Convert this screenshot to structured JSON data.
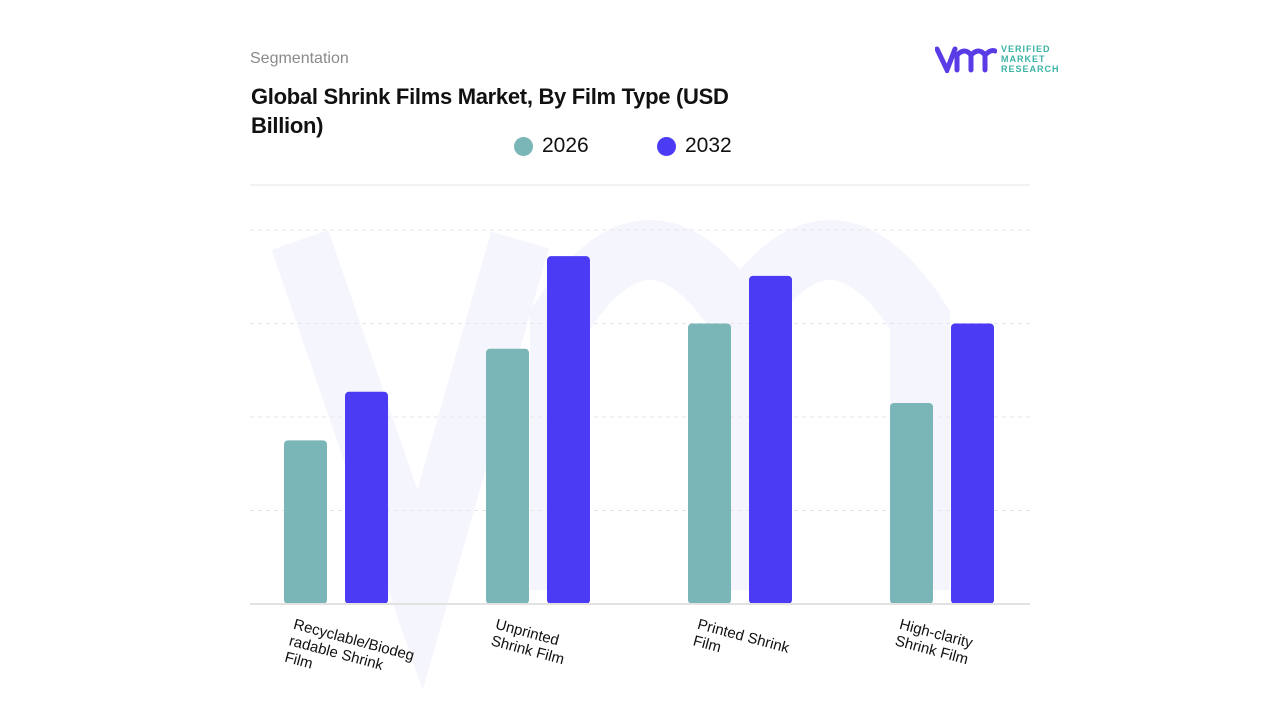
{
  "header": {
    "segment_label": "Segmentation",
    "title": "Global Shrink Films Market, By Film Type (USD Billion)"
  },
  "logo": {
    "text_lines": [
      "VERIFIED",
      "MARKET",
      "RESEARCH"
    ]
  },
  "chart_data": {
    "type": "bar",
    "title": "Global Shrink Films Market, By Film Type (USD Billion)",
    "categories": [
      "Recyclable/Biodegradable Shrink Film",
      "Unprinted Shrink Film",
      "Printed Shrink Film",
      "High-clarity Shrink Film"
    ],
    "category_labels": [
      "Recyclable/Biodeg\nradable Shrink\nFilm",
      "Unprinted\nShrink Film",
      "Printed Shrink\nFilm",
      "High-clarity\nShrink Film"
    ],
    "series": [
      {
        "name": "2026",
        "color": "#7ab5b8",
        "values": [
          1.75,
          2.73,
          3.0,
          2.15
        ]
      },
      {
        "name": "2032",
        "color": "#4b3bf5",
        "values": [
          2.27,
          3.72,
          3.51,
          3.0
        ]
      }
    ],
    "ylim": [
      0,
      4
    ],
    "grid": true,
    "legend_position": "top-center",
    "xlabel": "",
    "ylabel": ""
  }
}
